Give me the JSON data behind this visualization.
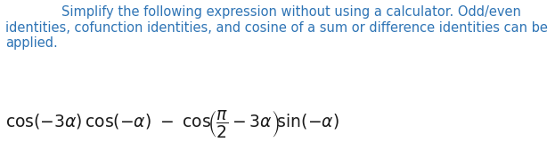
{
  "background_color": "#ffffff",
  "line1": "Simplify the following expression without using a calculator. Odd/even",
  "line2": "identities, cofunction identities, and cosine of a sum or difference identities can be",
  "line3": "applied.",
  "text_color": "#2e74b5",
  "text_fontsize": 10.5,
  "math_color": "#1a1a1a",
  "math_fontsize": 13.5,
  "fig_width": 6.23,
  "fig_height": 1.6,
  "dpi": 100
}
